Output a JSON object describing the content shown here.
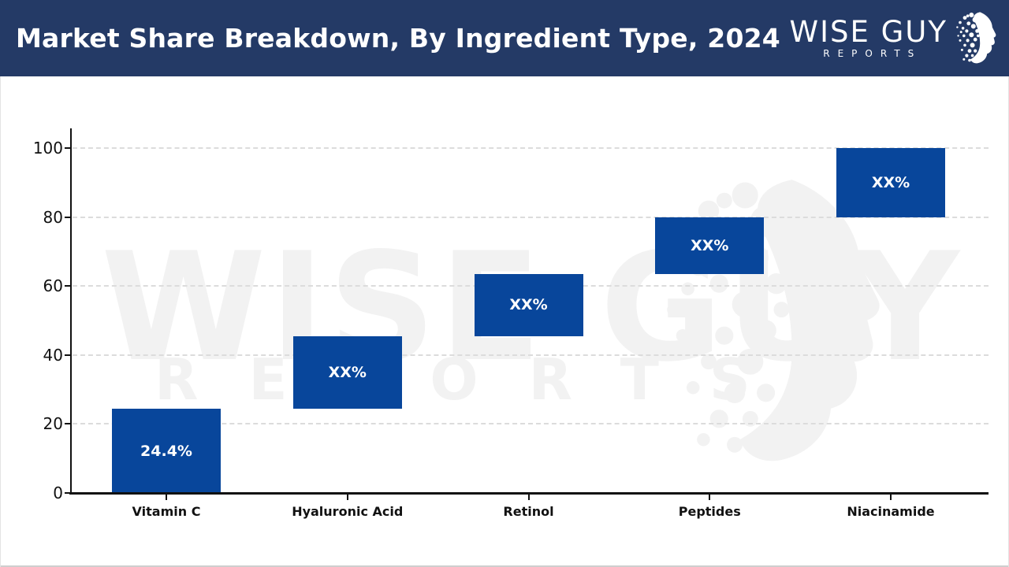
{
  "header": {
    "title": "Market Share Breakdown, By Ingredient Type, 2024",
    "logo": {
      "line1": "WISE GUY",
      "line2": "REPORTS",
      "icon": "dotted-face-profile"
    }
  },
  "watermark": {
    "line1": "WISE GUY",
    "line2": "REPORTS"
  },
  "colors": {
    "header_bg": "#243A66",
    "bar": "#08469B",
    "grid": "#DCDCDC",
    "axis": "#111111",
    "watermark": "#F2F2F2",
    "value_label": "#FFFFFF",
    "title_text": "#FFFFFF"
  },
  "chart_data": {
    "type": "bar",
    "subtype": "waterfall-floating-bars",
    "title": "Market Share Breakdown, By Ingredient Type, 2024",
    "categories": [
      "Vitamin C",
      "Hyaluronic Acid",
      "Retinol",
      "Peptides",
      "Niacinamide"
    ],
    "segments": [
      {
        "category": "Vitamin C",
        "start": 0,
        "end": 24.4,
        "label": "24.4%"
      },
      {
        "category": "Hyaluronic Acid",
        "start": 24.4,
        "end": 45.4,
        "label": "XX%"
      },
      {
        "category": "Retinol",
        "start": 45.4,
        "end": 63.5,
        "label": "XX%"
      },
      {
        "category": "Peptides",
        "start": 63.5,
        "end": 80,
        "label": "XX%"
      },
      {
        "category": "Niacinamide",
        "start": 80,
        "end": 100,
        "label": "XX%"
      }
    ],
    "ylim": [
      0,
      105
    ],
    "yticks": [
      0,
      20,
      40,
      60,
      80,
      100
    ],
    "xlabel": "",
    "ylabel": "",
    "grid": "horizontal-dashed",
    "legend": "none",
    "value_labels_inside_bars": true
  }
}
